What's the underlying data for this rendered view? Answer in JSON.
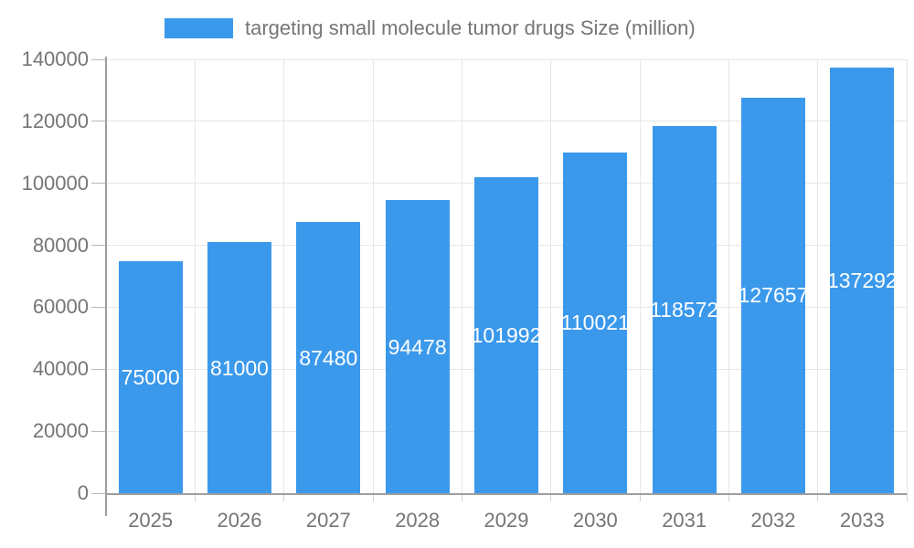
{
  "chart_data": {
    "type": "bar",
    "title": "",
    "legend": "targeting small molecule tumor drugs Size (million)",
    "legend_position": "top",
    "categories": [
      "2025",
      "2026",
      "2027",
      "2028",
      "2029",
      "2030",
      "2031",
      "2032",
      "2033"
    ],
    "values": [
      75000,
      81000,
      87480,
      94478,
      101992,
      110021,
      118572,
      127657,
      137292
    ],
    "bar_labels": [
      "75000",
      "81000",
      "87480",
      "94478",
      "101992",
      "110021",
      "118572",
      "127657",
      "137292"
    ],
    "xlabel": "",
    "ylabel": "",
    "ylim": [
      0,
      140000
    ],
    "yticks": [
      0,
      20000,
      40000,
      60000,
      80000,
      100000,
      120000,
      140000
    ],
    "grid": "horizontal-and-vertical",
    "colors": {
      "bar": "#3B99EC",
      "axis_text": "#757575",
      "grid_line": "#E6E6E6",
      "tick_line": "#B7B7B7",
      "axis_line": "#9E9E9E",
      "bar_label_text": "#FFFFFF",
      "background": "#FFFFFF"
    }
  }
}
